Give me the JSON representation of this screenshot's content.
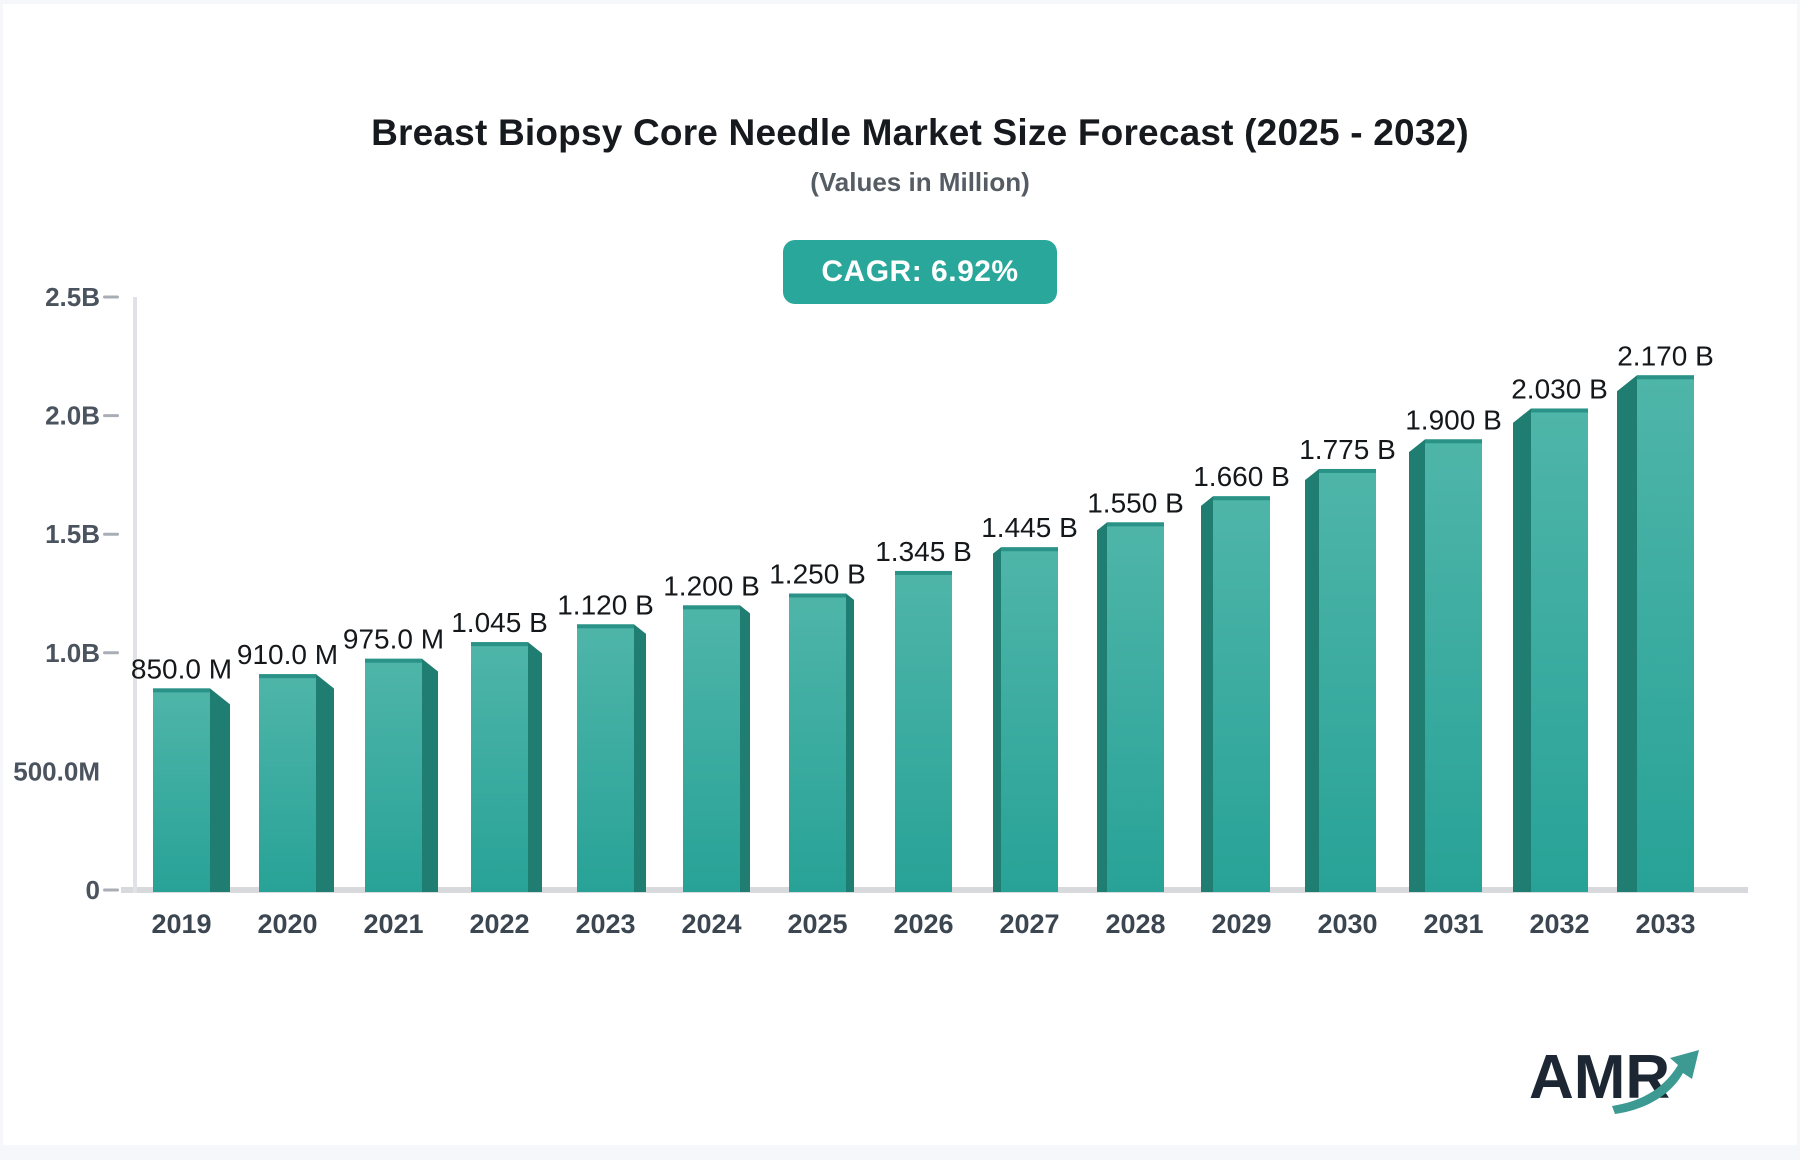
{
  "header": {
    "title": "Breast Biopsy Core Needle Market Size Forecast (2025 - 2032)",
    "subtitle": "(Values in Million)",
    "cagr_badge": "CAGR: 6.92%"
  },
  "branding": {
    "logo_text": "AMR"
  },
  "colors": {
    "badge_background": "#2aa79b",
    "bar_front_top": "#4fb5a9",
    "bar_front_bottom": "#28a297",
    "bar_side": "#1f7e71",
    "bar_top_cap": "#2b9288",
    "axis_line": "#d7d9dd",
    "axis_line_light": "#e0e2e6",
    "tick_dash": "#a9aeb6",
    "y_label": "#4a535e",
    "x_label": "#3c4651",
    "value_label": "#15181b",
    "logo_text": "#1c2733",
    "logo_arrow": "#3c9a92"
  },
  "chart_data": {
    "type": "bar",
    "title": "Breast Biopsy Core Needle Market Size Forecast (2025 - 2032)",
    "subtitle": "(Values in Million)",
    "annotation": "CAGR: 6.92%",
    "categories": [
      "2019",
      "2020",
      "2021",
      "2022",
      "2023",
      "2024",
      "2025",
      "2026",
      "2027",
      "2028",
      "2029",
      "2030",
      "2031",
      "2032",
      "2033"
    ],
    "values_billion": [
      0.85,
      0.91,
      0.975,
      1.045,
      1.12,
      1.2,
      1.25,
      1.345,
      1.445,
      1.55,
      1.66,
      1.775,
      1.9,
      2.03,
      2.17
    ],
    "bar_labels": [
      "850.0 M",
      "910.0 M",
      "975.0 M",
      "1.045 B",
      "1.120 B",
      "1.200 B",
      "1.250 B",
      "1.345 B",
      "1.445 B",
      "1.550 B",
      "1.660 B",
      "1.775 B",
      "1.900 B",
      "2.030 B",
      "2.170 B"
    ],
    "xlabel": "",
    "ylabel": "",
    "ylim_billion": [
      0,
      2.5
    ],
    "y_axis_ticks": [
      {
        "label": "0",
        "value": 0,
        "dash": true
      },
      {
        "label": "500.0M",
        "value": 0.5,
        "dash": false
      },
      {
        "label": "1.0B",
        "value": 1.0,
        "dash": true
      },
      {
        "label": "1.5B",
        "value": 1.5,
        "dash": true
      },
      {
        "label": "2.0B",
        "value": 2.0,
        "dash": true
      },
      {
        "label": "2.5B",
        "value": 2.5,
        "dash": true
      }
    ],
    "grid": false,
    "legend": false,
    "bar_style": "3d-perspective-teal"
  }
}
